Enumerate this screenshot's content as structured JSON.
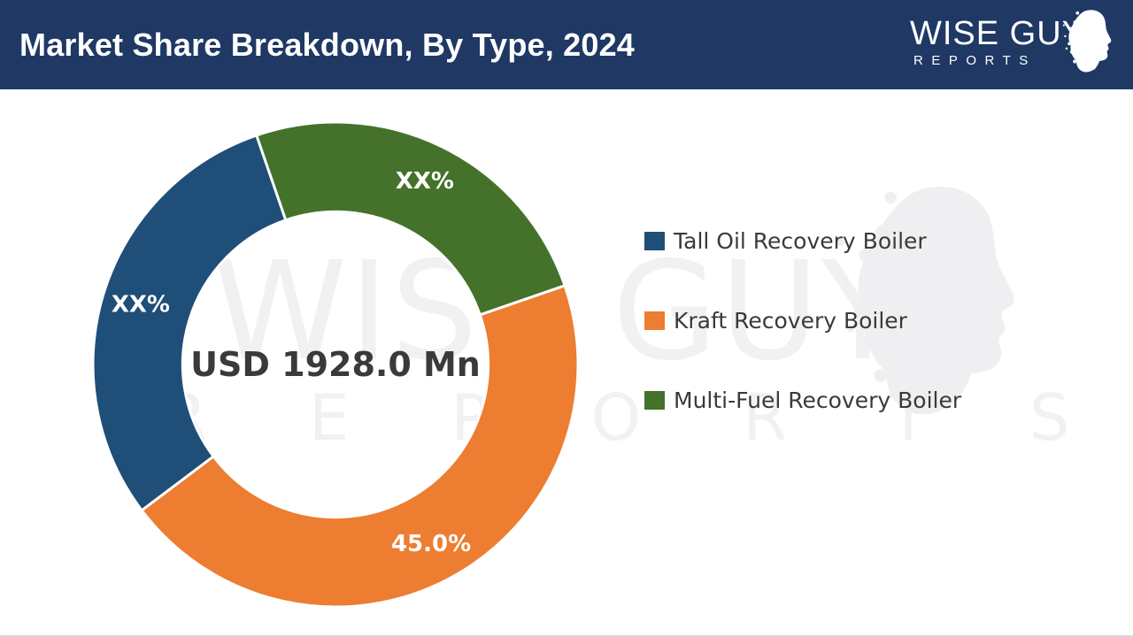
{
  "header": {
    "title": "Market Share Breakdown, By Type, 2024",
    "logo": {
      "name_line": "WISE GUY",
      "sub_line": "REPORTS"
    }
  },
  "chart_data": {
    "type": "pie",
    "subtype": "donut",
    "title": "Market Share Breakdown, By Type, 2024",
    "center_label": "USD 1928.0 Mn",
    "start_angle_deg": 109,
    "direction": "counterclockwise",
    "inner_radius_ratio": 0.63,
    "label_radius_ratio": 0.84,
    "legend_position": "right",
    "slices": [
      {
        "label": "Tall Oil Recovery Boiler",
        "display_pct": "XX%",
        "angle_share_pct": 30,
        "color": "#1f4e79"
      },
      {
        "label": "Kraft Recovery Boiler",
        "display_pct": "45.0%",
        "angle_share_pct": 45,
        "color": "#ed7d31"
      },
      {
        "label": "Multi-Fuel Recovery Boiler",
        "display_pct": "XX%",
        "angle_share_pct": 25,
        "color": "#44722b"
      }
    ]
  },
  "watermark": {
    "name_line": "WISE GUY",
    "sub_line": "R E P O R T S"
  },
  "colors": {
    "header_bg": "#1f3864",
    "watermark_gray": "#f1f1f4",
    "center_text": "#3a3a3a",
    "legend_text": "#3a3a3a",
    "bottom_line": "#d6d6d6",
    "slice_divider": "#ffffff"
  }
}
